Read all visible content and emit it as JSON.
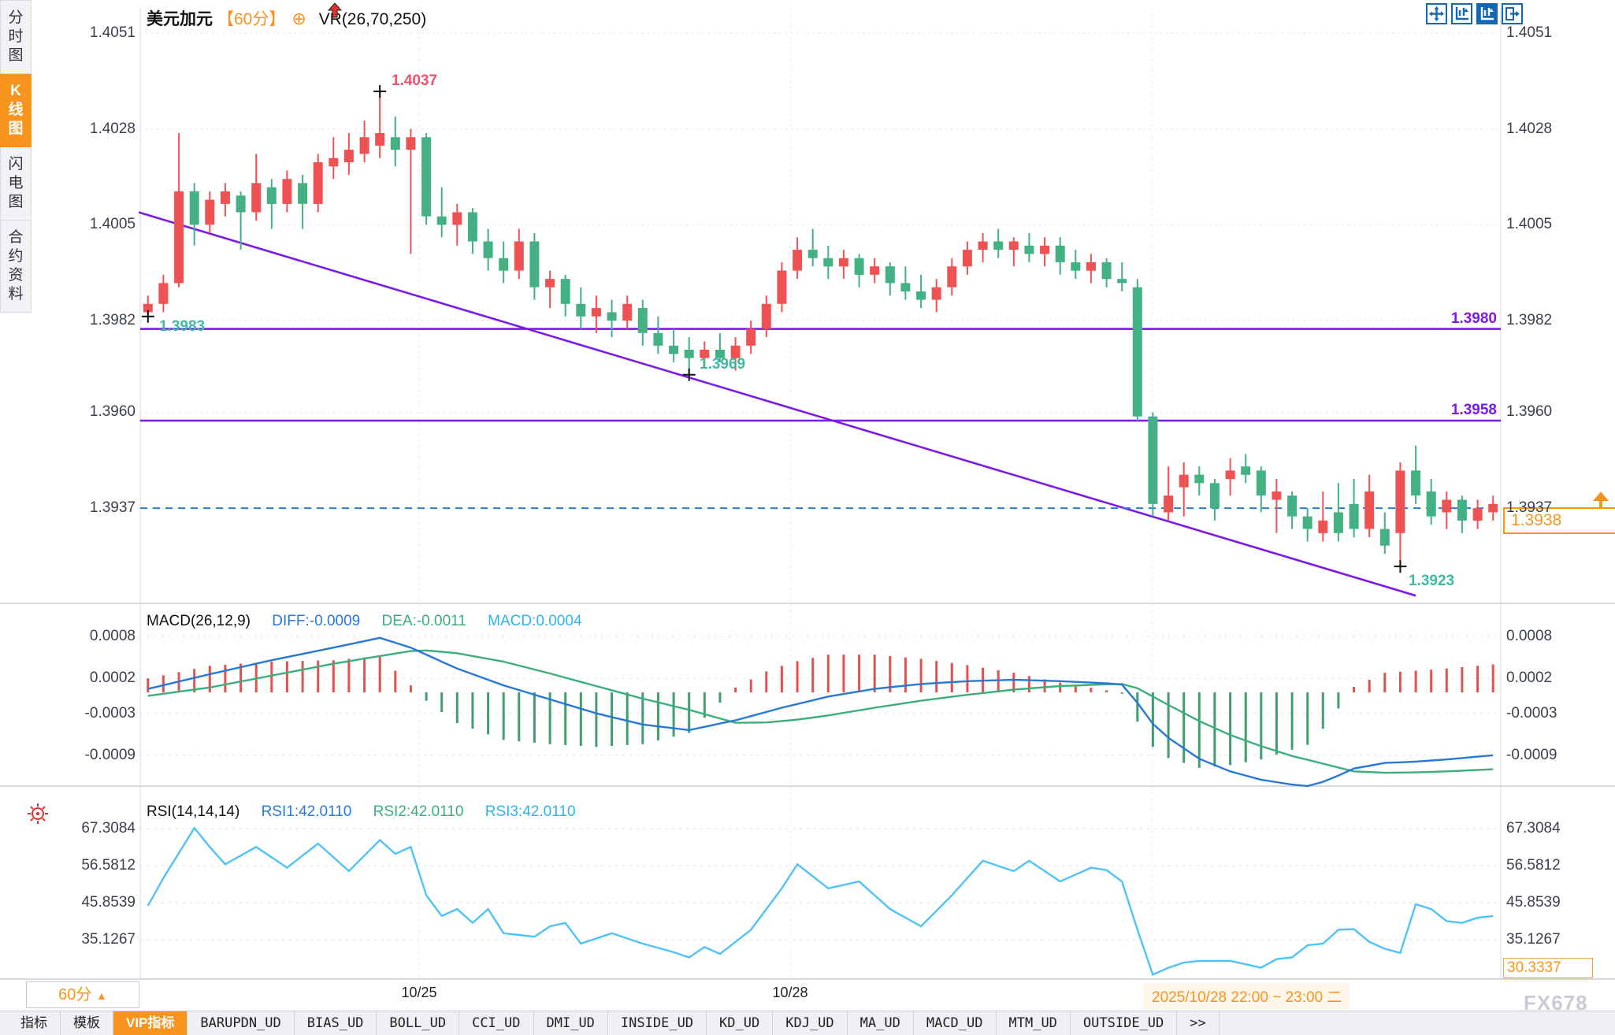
{
  "header": {
    "symbol": "美元加元",
    "period": "【60分】",
    "plus_icon": "⊕",
    "indicator": "VR(26,70,250)"
  },
  "sidebar": {
    "items": [
      {
        "label": "分时图",
        "active": false
      },
      {
        "label": "K线图",
        "active": true
      },
      {
        "label": "闪电图",
        "active": false
      },
      {
        "label": "合约资料",
        "active": false
      }
    ]
  },
  "toolbar": {
    "icons": [
      "crosshair-move-icon",
      "axis-scale-icon",
      "auto-scale-icon",
      "exit-chart-icon"
    ]
  },
  "price_axis": {
    "labels": [
      "1.4051",
      "1.4028",
      "1.4005",
      "1.3982",
      "1.3960",
      "1.3937"
    ]
  },
  "levels": {
    "resistance": {
      "label": "1.3980",
      "price": 1.398
    },
    "support": {
      "label": "1.3958",
      "price": 1.3958
    }
  },
  "current_price": {
    "box_label": "1.3938",
    "line_price": 1.3937
  },
  "swing_labels": {
    "start_low": "1.3983",
    "top_high": "1.4037",
    "mid_low": "1.3969",
    "end_low": "1.3923"
  },
  "macd_panel": {
    "title": "MACD(26,12,9)",
    "diff_label": "DIFF:-0.0009",
    "dea_label": "DEA:-0.0011",
    "macd_label": "MACD:0.0004",
    "axis_labels": [
      "0.0008",
      "0.0002",
      "-0.0003",
      "-0.0009"
    ],
    "axis_values": [
      0.0008,
      0.0002,
      -0.0003,
      -0.0009
    ]
  },
  "rsi_panel": {
    "title": "RSI(14,14,14)",
    "rsi1_label": "RSI1:42.0110",
    "rsi2_label": "RSI2:42.0110",
    "rsi3_label": "RSI3:42.0110",
    "axis_labels": [
      "67.3084",
      "56.5812",
      "45.8539",
      "35.1267"
    ],
    "axis_values": [
      67.3084,
      56.5812,
      45.8539,
      35.1267
    ],
    "current_label": "30.3337"
  },
  "time_axis": {
    "period_selector": "60分",
    "period_arrow": "▲",
    "dates": [
      {
        "label": "10/25",
        "x": 532
      },
      {
        "label": "10/28",
        "x": 1003
      }
    ],
    "current_range": "2025/10/28 22:00 ~ 23:00 二"
  },
  "tabs": [
    {
      "label": "指标",
      "cn": true,
      "active": false
    },
    {
      "label": "模板",
      "cn": true,
      "active": false
    },
    {
      "label": "VIP指标",
      "cn": true,
      "active": true
    },
    {
      "label": "BARUPDN_UD"
    },
    {
      "label": "BIAS_UD"
    },
    {
      "label": "BOLL_UD"
    },
    {
      "label": "CCI_UD"
    },
    {
      "label": "DMI_UD"
    },
    {
      "label": "INSIDE_UD"
    },
    {
      "label": "KD_UD"
    },
    {
      "label": "KDJ_UD"
    },
    {
      "label": "MA_UD"
    },
    {
      "label": "MACD_UD"
    },
    {
      "label": "MTM_UD"
    },
    {
      "label": "OUTSIDE_UD"
    },
    {
      "label": ">>"
    }
  ],
  "watermark": "FX678",
  "colors": {
    "up": "#ee5253",
    "down": "#43b183",
    "purple": "#7d1ae8",
    "price_line": "#1f7fe0",
    "orange": "#f7941d",
    "teal": "#3fbaa1",
    "macd_diff": "#2878d8",
    "macd_dea": "#3cae7c",
    "rsi_line": "#4fc3f7",
    "hist_up": "#e05252",
    "hist_down": "#3f9e6f",
    "grid": "#e8eaee",
    "divider": "#c9ced6"
  },
  "chart_data": [
    {
      "type": "candlestick",
      "title": "美元加元 60分 K线",
      "ohlc": [
        [
          1.3984,
          1.3988,
          1.3983,
          1.3986
        ],
        [
          1.3986,
          1.3993,
          1.3984,
          1.3991
        ],
        [
          1.3991,
          1.4027,
          1.399,
          1.4013
        ],
        [
          1.4013,
          1.4015,
          1.4,
          1.4005
        ],
        [
          1.4005,
          1.4013,
          1.4003,
          1.4011
        ],
        [
          1.401,
          1.4015,
          1.4007,
          1.4013
        ],
        [
          1.4012,
          1.4013,
          1.3999,
          1.4008
        ],
        [
          1.4008,
          1.4022,
          1.4006,
          1.4015
        ],
        [
          1.4014,
          1.4016,
          1.4004,
          1.401
        ],
        [
          1.401,
          1.4018,
          1.4008,
          1.4016
        ],
        [
          1.4015,
          1.4017,
          1.4004,
          1.401
        ],
        [
          1.401,
          1.4022,
          1.4008,
          1.402
        ],
        [
          1.4019,
          1.4026,
          1.4016,
          1.4021
        ],
        [
          1.402,
          1.4027,
          1.4017,
          1.4023
        ],
        [
          1.4022,
          1.403,
          1.402,
          1.4026
        ],
        [
          1.4024,
          1.4037,
          1.4021,
          1.4027
        ],
        [
          1.4026,
          1.4031,
          1.4019,
          1.4023
        ],
        [
          1.4023,
          1.4028,
          1.3998,
          1.4026
        ],
        [
          1.4026,
          1.4027,
          1.4005,
          1.4007
        ],
        [
          1.4007,
          1.4014,
          1.4002,
          1.4005
        ],
        [
          1.4005,
          1.401,
          1.4,
          1.4008
        ],
        [
          1.4008,
          1.4009,
          1.3998,
          1.4001
        ],
        [
          1.4001,
          1.4004,
          1.3994,
          1.3997
        ],
        [
          1.3997,
          1.4001,
          1.3991,
          1.3994
        ],
        [
          1.3994,
          1.4004,
          1.3992,
          1.4001
        ],
        [
          1.4001,
          1.4003,
          1.3987,
          1.399
        ],
        [
          1.399,
          1.3994,
          1.3985,
          1.3992
        ],
        [
          1.3992,
          1.3993,
          1.3983,
          1.3986
        ],
        [
          1.3986,
          1.399,
          1.398,
          1.3983
        ],
        [
          1.3983,
          1.3988,
          1.3979,
          1.3985
        ],
        [
          1.3984,
          1.3987,
          1.3978,
          1.3982
        ],
        [
          1.3982,
          1.3988,
          1.398,
          1.3986
        ],
        [
          1.3985,
          1.3987,
          1.3976,
          1.3979
        ],
        [
          1.3979,
          1.3983,
          1.3974,
          1.3976
        ],
        [
          1.3976,
          1.398,
          1.3972,
          1.3974
        ],
        [
          1.3975,
          1.3978,
          1.3969,
          1.3973
        ],
        [
          1.3973,
          1.3977,
          1.3971,
          1.3975
        ],
        [
          1.3975,
          1.3979,
          1.3972,
          1.3973
        ],
        [
          1.3973,
          1.3978,
          1.397,
          1.3976
        ],
        [
          1.3976,
          1.3982,
          1.3974,
          1.398
        ],
        [
          1.398,
          1.3988,
          1.3978,
          1.3986
        ],
        [
          1.3986,
          1.3996,
          1.3984,
          1.3994
        ],
        [
          1.3994,
          1.4002,
          1.3992,
          1.3999
        ],
        [
          1.3999,
          1.4004,
          1.3995,
          1.3997
        ],
        [
          1.3997,
          1.4,
          1.3992,
          1.3995
        ],
        [
          1.3995,
          1.3999,
          1.3992,
          1.3997
        ],
        [
          1.3997,
          1.3998,
          1.399,
          1.3993
        ],
        [
          1.3993,
          1.3997,
          1.3991,
          1.3995
        ],
        [
          1.3995,
          1.3996,
          1.3988,
          1.3991
        ],
        [
          1.3991,
          1.3995,
          1.3987,
          1.3989
        ],
        [
          1.3989,
          1.3993,
          1.3985,
          1.3987
        ],
        [
          1.3987,
          1.3992,
          1.3984,
          1.399
        ],
        [
          1.399,
          1.3997,
          1.3988,
          1.3995
        ],
        [
          1.3995,
          1.4001,
          1.3993,
          1.3999
        ],
        [
          1.3999,
          1.4003,
          1.3996,
          1.4001
        ],
        [
          1.4001,
          1.4004,
          1.3997,
          1.3999
        ],
        [
          1.3999,
          1.4002,
          1.3995,
          1.4001
        ],
        [
          1.4,
          1.4003,
          1.3996,
          1.3998
        ],
        [
          1.3998,
          1.4002,
          1.3995,
          1.4
        ],
        [
          1.4,
          1.4002,
          1.3993,
          1.3996
        ],
        [
          1.3996,
          1.3999,
          1.3992,
          1.3994
        ],
        [
          1.3994,
          1.3998,
          1.3991,
          1.3996
        ],
        [
          1.3996,
          1.3997,
          1.399,
          1.3992
        ],
        [
          1.3992,
          1.3996,
          1.3989,
          1.3991
        ],
        [
          1.399,
          1.3992,
          1.3958,
          1.3959
        ],
        [
          1.3959,
          1.396,
          1.3935,
          1.3938
        ],
        [
          1.3936,
          1.3947,
          1.3934,
          1.394
        ],
        [
          1.3942,
          1.3948,
          1.3935,
          1.3945
        ],
        [
          1.3945,
          1.3947,
          1.394,
          1.3943
        ],
        [
          1.3943,
          1.3944,
          1.3934,
          1.3937
        ],
        [
          1.3944,
          1.3949,
          1.394,
          1.3946
        ],
        [
          1.3947,
          1.395,
          1.3943,
          1.3945
        ],
        [
          1.3946,
          1.3947,
          1.3936,
          1.394
        ],
        [
          1.3939,
          1.3944,
          1.3931,
          1.3941
        ],
        [
          1.394,
          1.3941,
          1.3932,
          1.3935
        ],
        [
          1.3935,
          1.3937,
          1.3929,
          1.3932
        ],
        [
          1.3931,
          1.3941,
          1.3929,
          1.3934
        ],
        [
          1.3936,
          1.3943,
          1.3929,
          1.3931
        ],
        [
          1.3938,
          1.3944,
          1.393,
          1.3932
        ],
        [
          1.3932,
          1.3945,
          1.393,
          1.3941
        ],
        [
          1.3932,
          1.3936,
          1.3926,
          1.3928
        ],
        [
          1.3931,
          1.3948,
          1.3923,
          1.3946
        ],
        [
          1.3946,
          1.3952,
          1.3938,
          1.394
        ],
        [
          1.3941,
          1.3944,
          1.3933,
          1.3935
        ],
        [
          1.3936,
          1.3941,
          1.3932,
          1.3939
        ],
        [
          1.3939,
          1.394,
          1.3931,
          1.3934
        ],
        [
          1.3934,
          1.3939,
          1.3932,
          1.3937
        ],
        [
          1.3936,
          1.394,
          1.3934,
          1.3938
        ]
      ],
      "markers": [
        {
          "index": 0,
          "price": 1.3983,
          "label": "1.3983",
          "side": "low"
        },
        {
          "index": 15,
          "price": 1.4037,
          "label": "1.4037",
          "side": "high"
        },
        {
          "index": 35,
          "price": 1.3969,
          "label": "1.3969",
          "side": "low"
        },
        {
          "index": 81,
          "price": 1.3923,
          "label": "1.3923",
          "side": "low"
        }
      ],
      "trendline": {
        "start_index": -0.6,
        "start_price": 1.4008,
        "end_index": 82,
        "end_price": 1.3916
      },
      "ylim": [
        1.3923,
        1.4051
      ],
      "grid": true
    },
    {
      "type": "bar",
      "name": "MACD histogram = 2*(DIFF-DEA), units 1e-4",
      "diff_keypoints": [
        [
          0,
          0.5
        ],
        [
          4,
          2.6
        ],
        [
          8,
          4.6
        ],
        [
          12,
          6.4
        ],
        [
          15,
          7.8
        ],
        [
          17,
          6.4
        ],
        [
          20,
          3.4
        ],
        [
          23,
          1.0
        ],
        [
          26,
          -1.0
        ],
        [
          29,
          -3.0
        ],
        [
          32,
          -4.6
        ],
        [
          35,
          -5.4
        ],
        [
          38,
          -4.0
        ],
        [
          41,
          -2.2
        ],
        [
          44,
          -0.6
        ],
        [
          47,
          0.5
        ],
        [
          50,
          1.2
        ],
        [
          53,
          1.6
        ],
        [
          56,
          1.8
        ],
        [
          59,
          1.6
        ],
        [
          62,
          1.3
        ],
        [
          63,
          1.1
        ],
        [
          64,
          -1.5
        ],
        [
          65,
          -4.5
        ],
        [
          66,
          -6.5
        ],
        [
          68,
          -9.5
        ],
        [
          70,
          -11.3
        ],
        [
          72,
          -12.5
        ],
        [
          74,
          -13.2
        ],
        [
          75,
          -13.4
        ],
        [
          76,
          -12.8
        ],
        [
          77,
          -11.9
        ],
        [
          78,
          -10.9
        ],
        [
          80,
          -10.1
        ],
        [
          82,
          -9.9
        ],
        [
          84,
          -9.6
        ],
        [
          87,
          -9.0
        ]
      ],
      "dea_keypoints": [
        [
          0,
          -0.5
        ],
        [
          4,
          0.7
        ],
        [
          8,
          2.4
        ],
        [
          12,
          4.1
        ],
        [
          15,
          5.2
        ],
        [
          17,
          5.9
        ],
        [
          18,
          6.0
        ],
        [
          20,
          5.6
        ],
        [
          23,
          4.4
        ],
        [
          26,
          2.7
        ],
        [
          29,
          0.9
        ],
        [
          32,
          -0.9
        ],
        [
          35,
          -2.5
        ],
        [
          38,
          -4.35
        ],
        [
          40,
          -4.3
        ],
        [
          42,
          -3.9
        ],
        [
          44,
          -3.3
        ],
        [
          47,
          -2.2
        ],
        [
          50,
          -1.2
        ],
        [
          53,
          -0.35
        ],
        [
          56,
          0.4
        ],
        [
          59,
          0.9
        ],
        [
          62,
          1.15
        ],
        [
          63,
          1.2
        ],
        [
          64,
          0.6
        ],
        [
          65,
          -0.6
        ],
        [
          66,
          -1.8
        ],
        [
          68,
          -4.1
        ],
        [
          70,
          -6.1
        ],
        [
          72,
          -7.7
        ],
        [
          74,
          -9.1
        ],
        [
          76,
          -10.2
        ],
        [
          78,
          -11.3
        ],
        [
          80,
          -11.5
        ],
        [
          82,
          -11.45
        ],
        [
          84,
          -11.3
        ],
        [
          87,
          -11.0
        ]
      ],
      "final": {
        "diff": -0.0009,
        "dea": -0.0011,
        "macd": 0.0004
      }
    },
    {
      "type": "line",
      "name": "RSI(14,14,14) all three series equal",
      "keypoints": [
        [
          0,
          45
        ],
        [
          1,
          53
        ],
        [
          3,
          67.5
        ],
        [
          4,
          62
        ],
        [
          5,
          57
        ],
        [
          7,
          62
        ],
        [
          9,
          56
        ],
        [
          11,
          63
        ],
        [
          13,
          55
        ],
        [
          15,
          64
        ],
        [
          16,
          60
        ],
        [
          17,
          62
        ],
        [
          18,
          48
        ],
        [
          19,
          42
        ],
        [
          20,
          44
        ],
        [
          21,
          40
        ],
        [
          22,
          44
        ],
        [
          23,
          37
        ],
        [
          25,
          36
        ],
        [
          26,
          39
        ],
        [
          27,
          40
        ],
        [
          28,
          34
        ],
        [
          30,
          37
        ],
        [
          32,
          34
        ],
        [
          34,
          31.5
        ],
        [
          35,
          30
        ],
        [
          36,
          33
        ],
        [
          37,
          31
        ],
        [
          39,
          38
        ],
        [
          41,
          50
        ],
        [
          42,
          57
        ],
        [
          44,
          50
        ],
        [
          46,
          52
        ],
        [
          48,
          44
        ],
        [
          50,
          39
        ],
        [
          52,
          48
        ],
        [
          54,
          58
        ],
        [
          56,
          55
        ],
        [
          57,
          58
        ],
        [
          59,
          52
        ],
        [
          61,
          56
        ],
        [
          62,
          55.3
        ],
        [
          63,
          52
        ],
        [
          64,
          38
        ],
        [
          65,
          25
        ],
        [
          66,
          27
        ],
        [
          67,
          28.5
        ],
        [
          68,
          29
        ],
        [
          70,
          29
        ],
        [
          71,
          28
        ],
        [
          72,
          27
        ],
        [
          73,
          29.5
        ],
        [
          74,
          30
        ],
        [
          75,
          33.5
        ],
        [
          76,
          34
        ],
        [
          77,
          38
        ],
        [
          78,
          38.2
        ],
        [
          79,
          34.5
        ],
        [
          80,
          32.5
        ],
        [
          81,
          31.3
        ],
        [
          82,
          45.4
        ],
        [
          83,
          44
        ],
        [
          84,
          40.5
        ],
        [
          85,
          40
        ],
        [
          86,
          41.5
        ],
        [
          87,
          42
        ]
      ],
      "final_value": 42.011
    }
  ]
}
